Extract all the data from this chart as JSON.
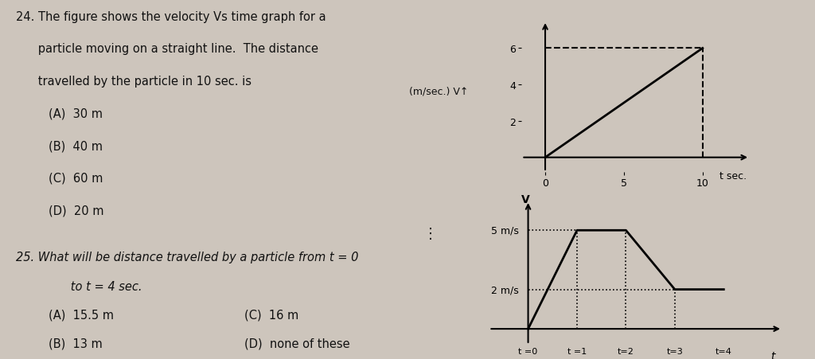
{
  "bg_color": "#cdc5bc",
  "text_color": "#111111",
  "q24_line1": "24. The figure shows the velocity Vs time graph for a",
  "q24_line2": "      particle moving on a straight line.  The distance",
  "q24_line3": "      travelled by the particle in 10 sec. is",
  "q24_A": "(A)  30 m",
  "q24_B": "(B)  40 m",
  "q24_C": "(C)  60 m",
  "q24_D": "(D)  20 m",
  "q25_line1": "25. What will be distance travelled by a particle from t = 0",
  "q25_line2": "      to t = 4 sec.",
  "q25_A": "(A)  15.5 m",
  "q25_B": "(B)  13 m",
  "q25_C": "(C)  16 m",
  "q25_D": "(D)  none of these",
  "graph1_ylabel": "(m/sec.) V↑",
  "graph1_xlabel": "t sec.",
  "graph1_yticks": [
    2,
    4,
    6
  ],
  "graph1_xticks": [
    0,
    5,
    10
  ],
  "graph2_ylabel": "V",
  "graph2_xlabel": "t",
  "graph2_ytick_labels": [
    "2 m/s",
    "5 m/s"
  ],
  "graph2_ytick_vals": [
    2,
    5
  ],
  "graph2_xtick_labels": [
    "t =0",
    "t =1",
    "t=2",
    "t=3",
    "t=4"
  ],
  "graph2_xtick_vals": [
    0,
    1,
    2,
    3,
    4
  ]
}
